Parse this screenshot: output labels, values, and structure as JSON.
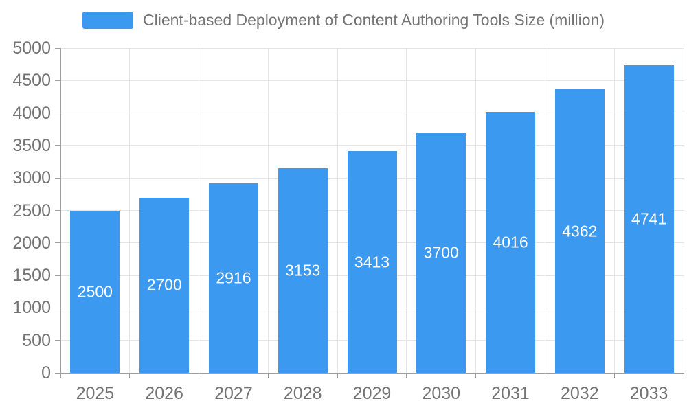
{
  "chart_data": {
    "type": "bar",
    "title": "",
    "legend": "Client-based Deployment of Content Authoring Tools Size (million)",
    "legend_position": "top",
    "categories": [
      "2025",
      "2026",
      "2027",
      "2028",
      "2029",
      "2030",
      "2031",
      "2032",
      "2033"
    ],
    "series": [
      {
        "name": "Client-based Deployment of Content Authoring Tools Size (million)",
        "values": [
          2500,
          2700,
          2916,
          3153,
          3413,
          3700,
          4016,
          4362,
          4741
        ]
      }
    ],
    "xlabel": "",
    "ylabel": "",
    "ylim": [
      0,
      5000
    ],
    "ytick_step": 500,
    "grid": true,
    "value_labels_inside_bars": true,
    "colors": {
      "bar": "#3C99F0",
      "value_label": "#FFFFFF",
      "axis_line": "#9E9E9E",
      "gridline": "#E4E4E4",
      "text": "#747474"
    }
  }
}
